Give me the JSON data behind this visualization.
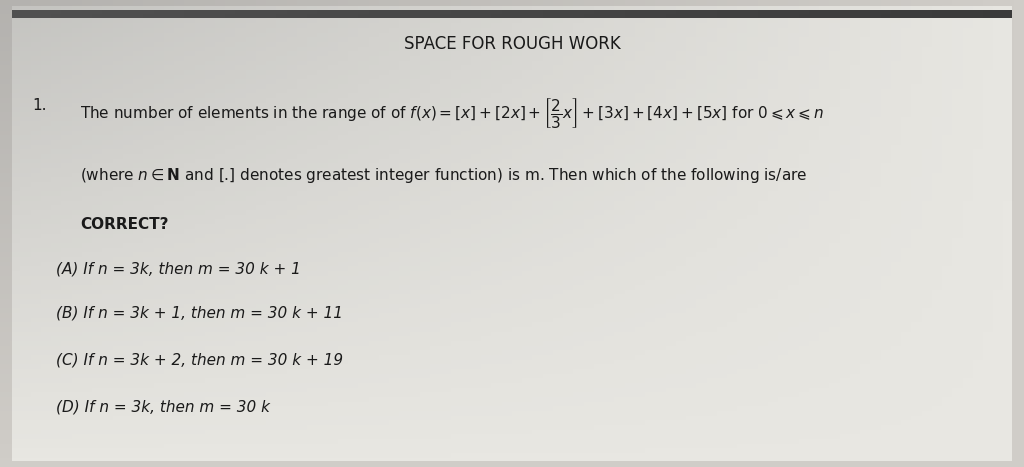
{
  "title": "SPACE FOR ROUGH WORK",
  "title_fontsize": 12,
  "bg_color": "#d0cdc8",
  "paper_color": "#e8e7e2",
  "text_color": "#1a1a1a",
  "top_line_color": "#3a3a3a",
  "question_number": "1.",
  "line1_text": "The number of elements in the range of of $f(x) = [x] + [2x] + \\left[\\dfrac{2}{3}x\\right] + [3x] + [4x] + [5x]$ for $0 \\leqslant x \\leqslant n$",
  "line2_text": "(where $n \\in \\mathbf{N}$ and [.] denotes greatest integer function) is m. Then which of the following is/are",
  "line3_text": "CORRECT?",
  "optionA": "(A) If n = 3k, then m = 30 k + 1",
  "optionB": "(B) If n = 3k + 1, then m = 30 k + 11",
  "optionC": "(C) If n = 3k + 2, then m = 30 k + 19",
  "optionD": "(D) If n = 3k, then m = 30 k",
  "font_size_main": 11,
  "font_size_options": 11,
  "font_size_title": 12
}
